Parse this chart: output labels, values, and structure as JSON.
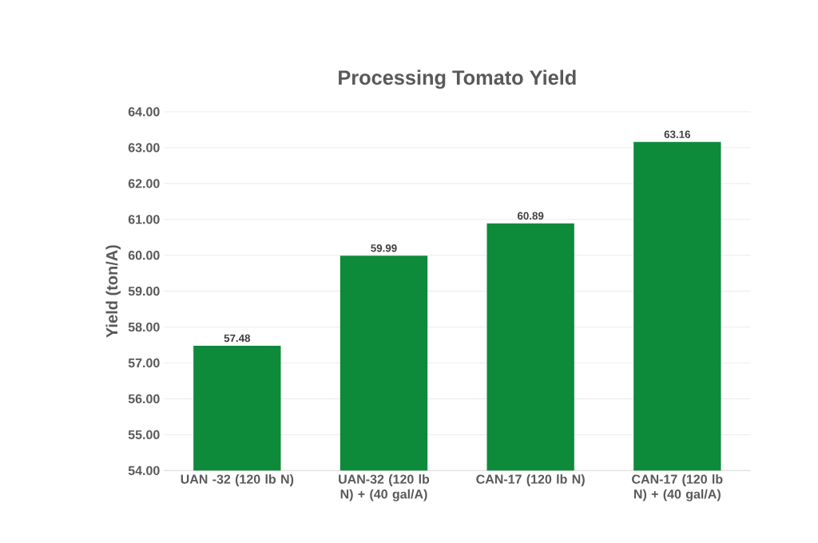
{
  "chart_data": {
    "type": "bar",
    "title": "Processing Tomato Yield",
    "ylabel": "Yield (ton/A)",
    "categories": [
      "UAN -32 (120 lb N)",
      "UAN-32 (120 lb N) + (40 gal/A)",
      "CAN-17 (120 lb N)",
      "CAN-17 (120 lb N) + (40 gal/A)"
    ],
    "values": [
      57.48,
      59.99,
      60.89,
      63.16
    ],
    "color": "#0e8a3b",
    "value_labels": [
      "57.48",
      "59.99",
      "60.89",
      "63.16"
    ],
    "ylim": [
      54,
      64
    ],
    "yticks": [
      {
        "value": 54,
        "label": "54.00"
      },
      {
        "value": 55,
        "label": "55.00"
      },
      {
        "value": 56,
        "label": "56.00"
      },
      {
        "value": 57,
        "label": "57.00"
      },
      {
        "value": 58,
        "label": "58.00"
      },
      {
        "value": 59,
        "label": "59.00"
      },
      {
        "value": 60,
        "label": "60.00"
      },
      {
        "value": 61,
        "label": "61.00"
      },
      {
        "value": 62,
        "label": "62.00"
      },
      {
        "value": 63,
        "label": "63.00"
      },
      {
        "value": 64,
        "label": "64.00"
      }
    ],
    "grid": "y"
  }
}
